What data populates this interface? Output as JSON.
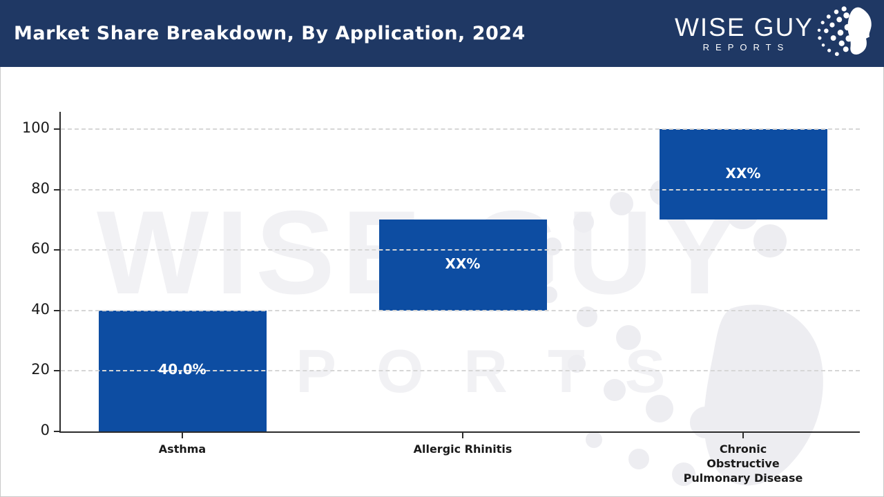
{
  "header": {
    "title": "Market Share Breakdown, By Application, 2024",
    "logo": {
      "line1": "WISE GUY",
      "line2": "REPORTS"
    }
  },
  "watermark": {
    "line1": "WISE GUY",
    "line2": "REPORTS"
  },
  "chart_data": {
    "type": "bar",
    "variant": "floating-segment-waterfall",
    "title": "Market Share Breakdown, By Application, 2024",
    "categories": [
      "Asthma",
      "Allergic Rhinitis",
      "Chronic\nObstructive\nPulmonary Disease"
    ],
    "segments": [
      {
        "category": "Asthma",
        "start": 0,
        "end": 40,
        "label": "40.0%"
      },
      {
        "category": "Allergic Rhinitis",
        "start": 40,
        "end": 70,
        "label": "XX%"
      },
      {
        "category": "Chronic Obstructive Pulmonary Disease",
        "start": 70,
        "end": 100,
        "label": "XX%"
      }
    ],
    "yticks": [
      0,
      20,
      40,
      60,
      80,
      100
    ],
    "ylim": [
      0,
      105
    ],
    "xlabel": "",
    "ylabel": "",
    "grid": "horizontal-dashed",
    "legend": "none",
    "bar_color": "#0d4da2",
    "value_label_color": "#ffffff"
  },
  "colors": {
    "header_bg": "#1f3864",
    "bar": "#0d4da2",
    "grid": "#d6d6d6",
    "axis": "#2b2b2b",
    "watermark": "#f1f1f4",
    "page_border": "#c9c9c9"
  }
}
